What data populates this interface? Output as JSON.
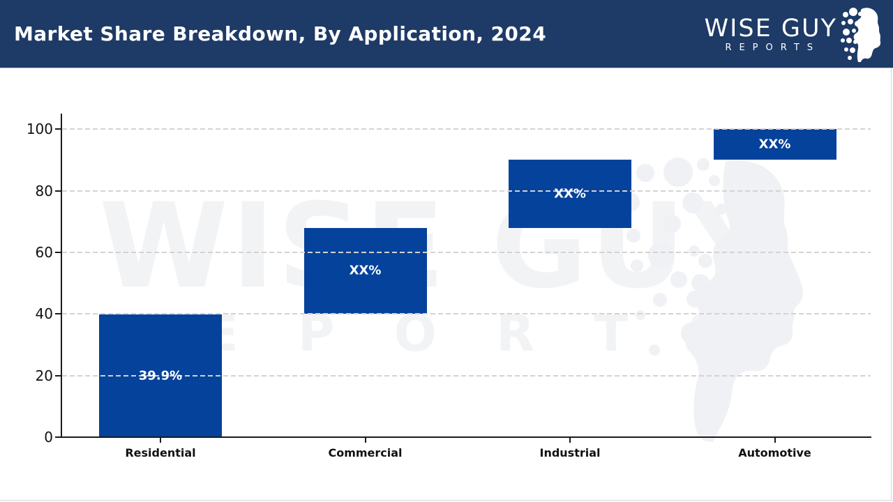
{
  "header": {
    "title": "Market Share Breakdown, By Application, 2024",
    "bg_color": "#1e3a66",
    "logo": {
      "line1": "WISE GUY",
      "line2": "REPORTS"
    }
  },
  "watermark": {
    "line1": "WISE GUY",
    "line2": "R E P O R T S"
  },
  "chart_data": {
    "type": "bar",
    "subtype": "waterfall",
    "title": "Market Share Breakdown, By Application, 2024",
    "categories": [
      "Residential",
      "Commercial",
      "Industrial",
      "Automotive"
    ],
    "segments": [
      {
        "category": "Residential",
        "start": 0,
        "end": 39.9,
        "label": "39.9%"
      },
      {
        "category": "Commercial",
        "start": 40,
        "end": 68,
        "label": "XX%"
      },
      {
        "category": "Industrial",
        "start": 68,
        "end": 90,
        "label": "XX%"
      },
      {
        "category": "Automotive",
        "start": 90,
        "end": 100,
        "label": "XX%"
      }
    ],
    "yticks": [
      0,
      20,
      40,
      60,
      80,
      100
    ],
    "ylim": [
      0,
      105
    ],
    "xlabel": "",
    "ylabel": "",
    "bar_color": "#05429b",
    "grid": "horizontal-dashed",
    "legend": "none"
  }
}
